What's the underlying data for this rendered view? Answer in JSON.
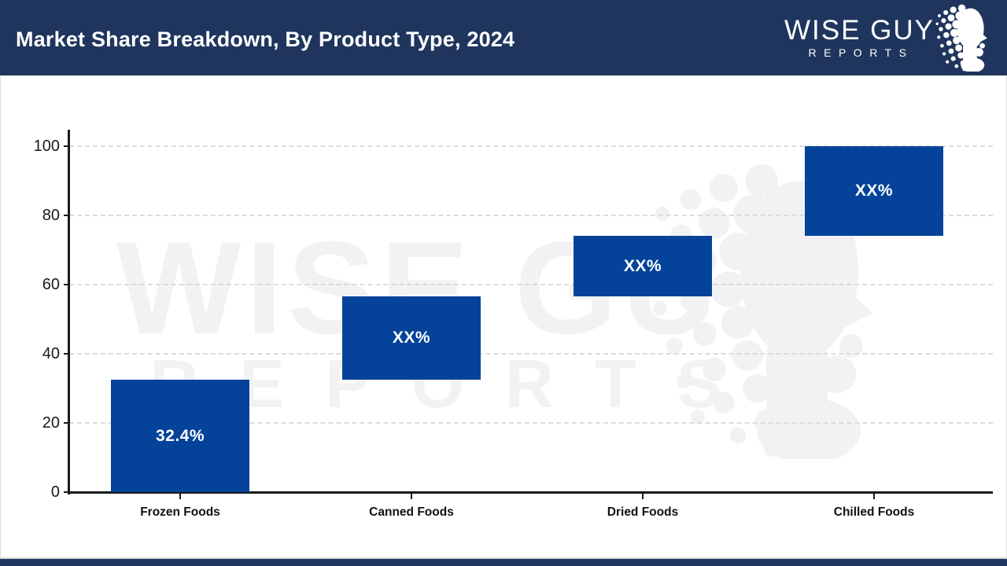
{
  "header": {
    "title": "Market Share Breakdown, By Product Type, 2024",
    "bg_color": "#1F355E",
    "logo": {
      "wordmark": "WISE GUY",
      "subtext": "REPORTS"
    }
  },
  "watermark": {
    "wordmark": "WISE GUY",
    "subtext": "REPORTS"
  },
  "chart_data": {
    "type": "bar",
    "subtype": "waterfall-floating-bars",
    "title": "Market Share Breakdown, By Product Type, 2024",
    "categories": [
      "Frozen Foods",
      "Canned Foods",
      "Dried Foods",
      "Chilled Foods"
    ],
    "segments": [
      {
        "category": "Frozen Foods",
        "start": 0,
        "end": 32.4,
        "label": "32.4%"
      },
      {
        "category": "Canned Foods",
        "start": 32.4,
        "end": 56.6,
        "label": "XX%"
      },
      {
        "category": "Dried Foods",
        "start": 56.6,
        "end": 74.0,
        "label": "XX%"
      },
      {
        "category": "Chilled Foods",
        "start": 74.0,
        "end": 100,
        "label": "XX%"
      }
    ],
    "xlabel": "",
    "ylabel": "",
    "ylim": [
      0,
      100
    ],
    "yticks": [
      0,
      20,
      40,
      60,
      80,
      100
    ],
    "grid": {
      "horizontal": true,
      "style": "dashed",
      "color": "#DBDBDB"
    },
    "legend": null,
    "bar_color": "#05439A",
    "bar_label_color": "#FFFFFF",
    "axis_color": "#1A1A1A"
  },
  "footer": {
    "bar_color": "#1F355E"
  }
}
